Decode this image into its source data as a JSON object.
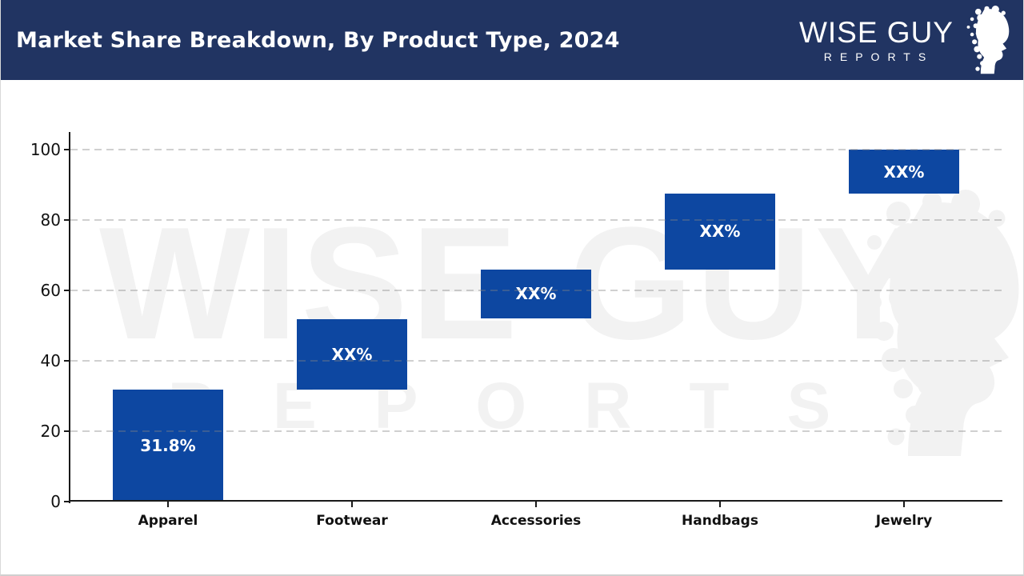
{
  "header": {
    "title": "Market Share Breakdown, By Product Type, 2024",
    "background_color": "#213462",
    "logo": {
      "line1": "WISE GUY",
      "line2": "REPORTS"
    }
  },
  "watermark": {
    "line1": "WISE GUY",
    "line2": "REPORTS"
  },
  "chart_data": {
    "type": "bar",
    "subtype": "waterfall",
    "title": "Market Share Breakdown, By Product Type, 2024",
    "xlabel": "",
    "ylabel": "",
    "categories": [
      "Apparel",
      "Footwear",
      "Accessories",
      "Handbags",
      "Jewelry"
    ],
    "bars": [
      {
        "category": "Apparel",
        "base": 0,
        "top": 31.8,
        "label": "31.8%"
      },
      {
        "category": "Footwear",
        "base": 31.8,
        "top": 51.8,
        "label": "XX%"
      },
      {
        "category": "Accessories",
        "base": 52,
        "top": 66,
        "label": "XX%"
      },
      {
        "category": "Handbags",
        "base": 66,
        "top": 87.5,
        "label": "XX%"
      },
      {
        "category": "Jewelry",
        "base": 87.5,
        "top": 100,
        "label": "XX%"
      }
    ],
    "yticks": [
      0,
      20,
      40,
      60,
      80,
      100
    ],
    "ylim": [
      0,
      105
    ],
    "grid": "dashed-horizontal",
    "legend": "none",
    "bar_color": "#0d47a1",
    "axis_color": "#1a1a1a"
  }
}
